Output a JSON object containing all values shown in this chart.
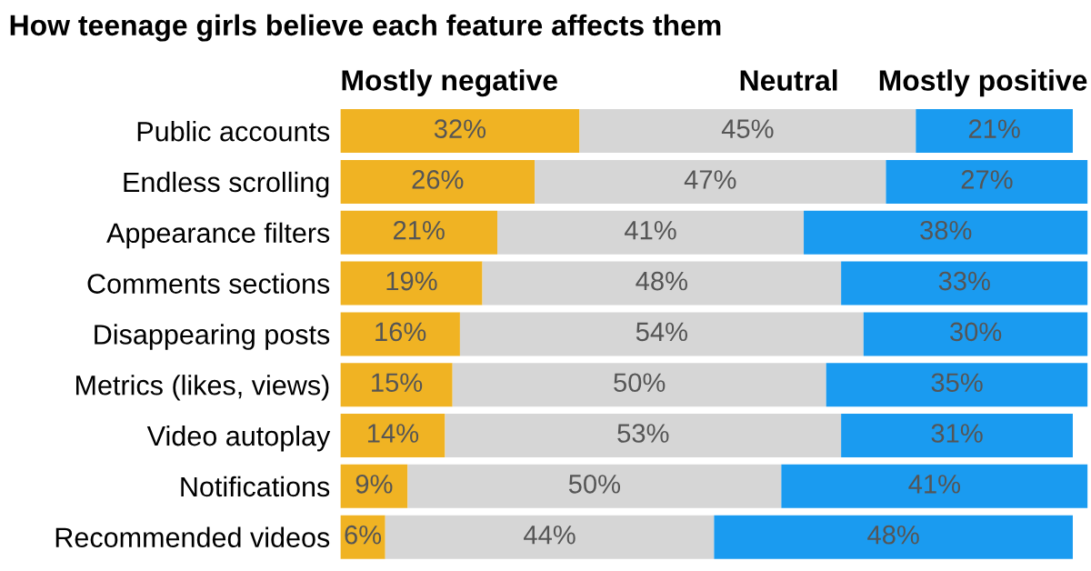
{
  "chart_data": {
    "type": "bar",
    "orientation": "horizontal",
    "stacked": true,
    "title": "How teenage girls believe each feature affects them",
    "categories": [
      "Public accounts",
      "Endless scrolling",
      "Appearance filters",
      "Comments sections",
      "Disappearing posts",
      "Metrics (likes, views)",
      "Video autoplay",
      "Notifications",
      "Recommended videos"
    ],
    "series": [
      {
        "name": "Mostly negative",
        "color": "#f0b323",
        "values": [
          32,
          26,
          21,
          19,
          16,
          15,
          14,
          9,
          6
        ],
        "value_labels": [
          "32%",
          "26%",
          "21%",
          "19%",
          "16%",
          "15%",
          "14%",
          "9%",
          "6%"
        ]
      },
      {
        "name": "Neutral",
        "color": "#d6d6d6",
        "values": [
          45,
          47,
          41,
          48,
          54,
          50,
          53,
          50,
          44
        ],
        "value_labels": [
          "45%",
          "47%",
          "41%",
          "48%",
          "54%",
          "50%",
          "53%",
          "50%",
          "44%"
        ]
      },
      {
        "name": "Mostly positive",
        "color": "#1a9bf0",
        "values": [
          21,
          27,
          38,
          33,
          30,
          35,
          31,
          41,
          48
        ],
        "value_labels": [
          "21%",
          "27%",
          "38%",
          "33%",
          "30%",
          "35%",
          "31%",
          "41%",
          "48%"
        ]
      }
    ],
    "tick_labels": "y",
    "legend": "top",
    "grid": false
  }
}
